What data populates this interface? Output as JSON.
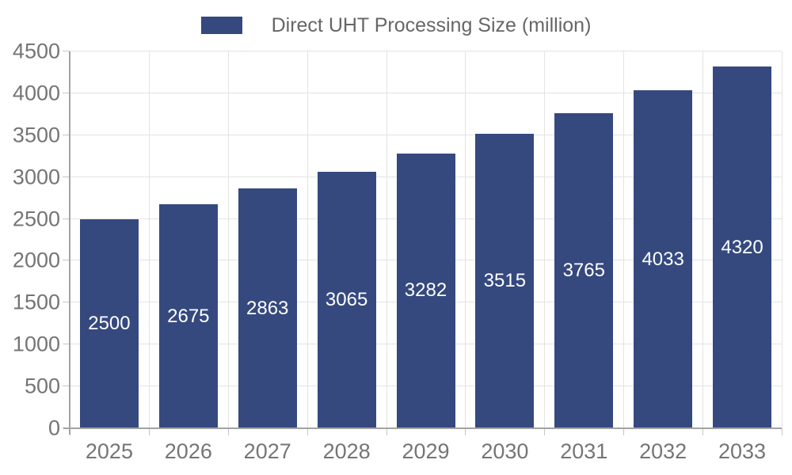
{
  "chart": {
    "colors": {
      "background": "#ffffff",
      "bar": "#35497f",
      "grid": "#e3e3e3",
      "axis": "#a3a3a3",
      "tick": "#c6c6c6",
      "axis_text": "#757575",
      "legend_text": "#666666",
      "value_text": "#ffffff"
    }
  },
  "chart_data": {
    "type": "bar",
    "title": "",
    "categories": [
      "2025",
      "2026",
      "2027",
      "2028",
      "2029",
      "2030",
      "2031",
      "2032",
      "2033"
    ],
    "series": [
      {
        "name": "Direct UHT Processing Size (million)",
        "values": [
          2500,
          2675,
          2863,
          3065,
          3282,
          3515,
          3765,
          4033,
          4320
        ]
      }
    ],
    "value_labels": [
      2500,
      2675,
      2863,
      3065,
      3282,
      3515,
      3765,
      4033,
      4320
    ],
    "value_label_position": "inside-center",
    "xlabel": "",
    "ylabel": "",
    "ylim": [
      0,
      4500
    ],
    "ytick_step": 500,
    "yticks": [
      0,
      500,
      1000,
      1500,
      2000,
      2500,
      3000,
      3500,
      4000,
      4500
    ],
    "grid": true,
    "legend_entries": [
      "Direct UHT Processing Size (million)"
    ],
    "legend_position": "top-center"
  }
}
